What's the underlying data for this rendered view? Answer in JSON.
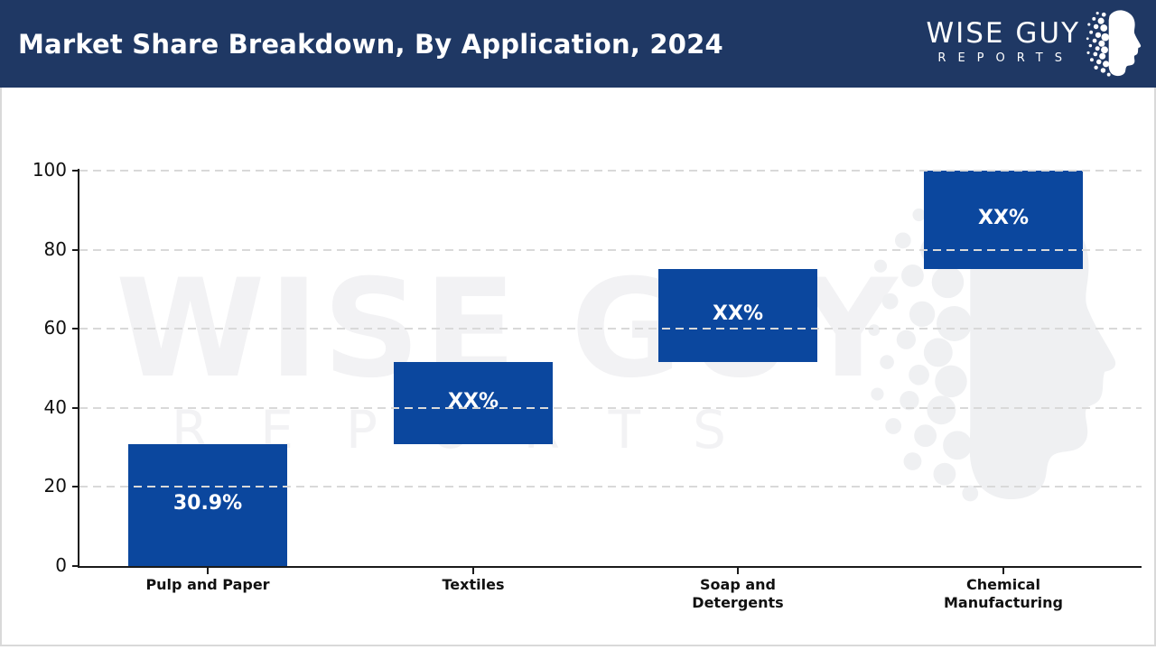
{
  "header": {
    "title": "Market Share Breakdown, By Application, 2024",
    "background_color": "#1f3864",
    "logo": {
      "wordmark": "WISE GUY",
      "subtitle": "REPORTS"
    }
  },
  "watermark": {
    "wordmark": "WISE GUY",
    "subtitle": "REPORTS"
  },
  "chart_data": {
    "type": "bar",
    "subtype": "waterfall-floating-segments",
    "title": "Market Share Breakdown, By Application, 2024",
    "categories": [
      "Pulp and Paper",
      "Textiles",
      "Soap and Detergents",
      "Chemical Manufacturing"
    ],
    "segments": [
      {
        "category": "Pulp and Paper",
        "start": 0,
        "end": 30.9,
        "label": "30.9%"
      },
      {
        "category": "Textiles",
        "start": 30.9,
        "end": 51.7,
        "label": "XX%"
      },
      {
        "category": "Soap and Detergents",
        "start": 51.7,
        "end": 75.2,
        "label": "XX%"
      },
      {
        "category": "Chemical Manufacturing",
        "start": 75.2,
        "end": 100,
        "label": "XX%"
      }
    ],
    "ylim": [
      0,
      100
    ],
    "yticks": [
      0,
      20,
      40,
      60,
      80,
      100
    ],
    "xlabel": "",
    "ylabel": "",
    "grid": "horizontal-dashed",
    "legend": "none",
    "bar_color": "#0b479e",
    "value_label_color": "#ffffff",
    "axis_color": "#1a1a1a",
    "gridline_color": "#d9d9d9"
  }
}
